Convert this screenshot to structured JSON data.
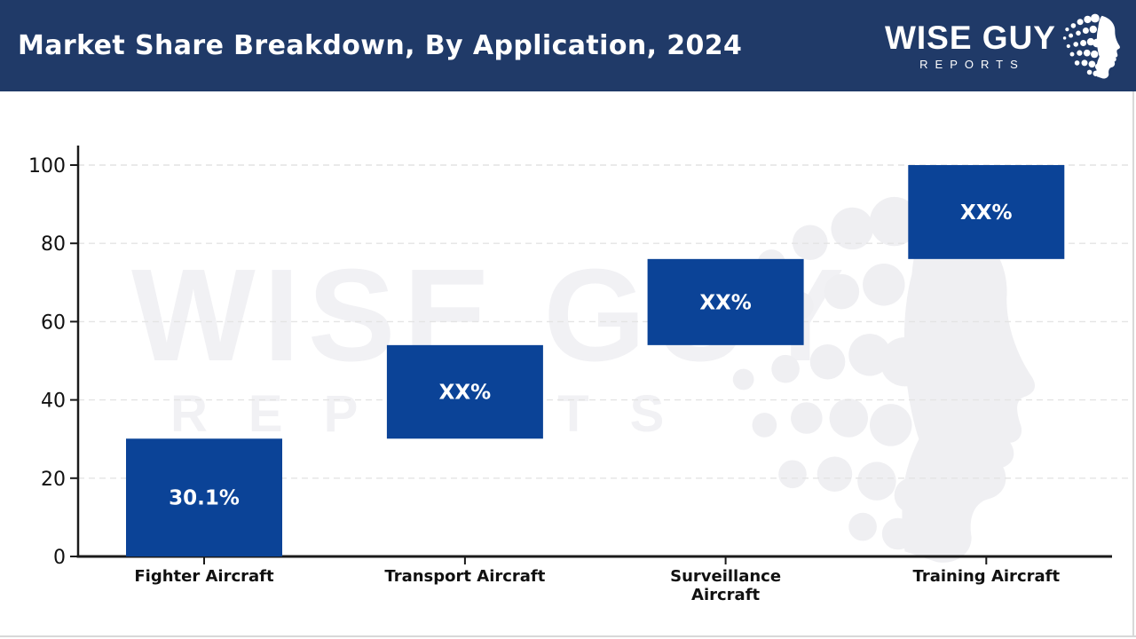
{
  "header": {
    "title": "Market Share Breakdown, By Application, 2024",
    "background_color": "#203a68"
  },
  "logo": {
    "wordmark": "WISE GUY",
    "subtext": "REPORTS"
  },
  "watermark": {
    "line1": "WISE GUY",
    "line2": "REPORTS"
  },
  "chart_data": {
    "type": "bar",
    "subtype": "waterfall",
    "title": "Market Share Breakdown, By Application, 2024",
    "categories": [
      "Fighter Aircraft",
      "Transport Aircraft",
      "Surveillance Aircraft",
      "Training Aircraft"
    ],
    "tick_labels": [
      [
        "Fighter Aircraft"
      ],
      [
        "Transport Aircraft"
      ],
      [
        "Surveillance",
        "Aircraft"
      ],
      [
        "Training Aircraft"
      ]
    ],
    "segments": [
      {
        "category": "Fighter Aircraft",
        "start": 0,
        "end": 30.1,
        "value": 30.1,
        "label": "30.1%"
      },
      {
        "category": "Transport Aircraft",
        "start": 30.1,
        "end": 54,
        "value": 23.9,
        "label": "XX%"
      },
      {
        "category": "Surveillance Aircraft",
        "start": 54,
        "end": 76,
        "value": 22,
        "label": "XX%"
      },
      {
        "category": "Training Aircraft",
        "start": 76,
        "end": 100,
        "value": 24,
        "label": "XX%"
      }
    ],
    "yticks": [
      "0",
      "20",
      "40",
      "60",
      "80",
      "100"
    ],
    "ylim": [
      0,
      105
    ],
    "grid": "horizontal-dashed",
    "grid_color": "#e4e4e4",
    "axis_color": "#1a1a1a",
    "bar_color": "#0b4397",
    "bar_label_color": "#ffffff",
    "legend": "none"
  }
}
